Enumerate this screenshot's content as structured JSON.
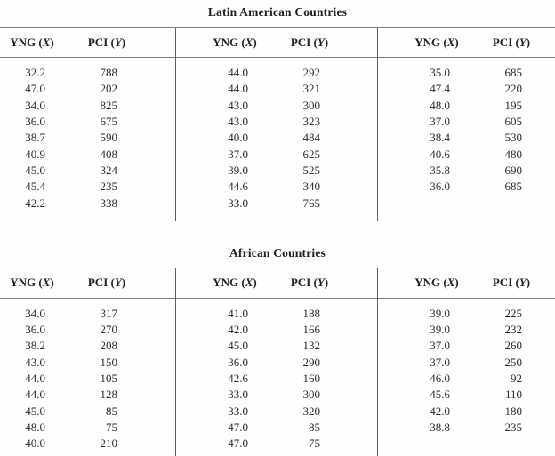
{
  "headers": {
    "yng_prefix": "YNG (",
    "yng_var": "X",
    "yng_suffix": ")",
    "pci_prefix": "PCI (",
    "pci_var": "Y",
    "pci_suffix": ")"
  },
  "tables": [
    {
      "title": "Latin American Countries",
      "groups": [
        {
          "rows": [
            [
              "32.2",
              "788"
            ],
            [
              "47.0",
              "202"
            ],
            [
              "34.0",
              "825"
            ],
            [
              "36.0",
              "675"
            ],
            [
              "38.7",
              "590"
            ],
            [
              "40.9",
              "408"
            ],
            [
              "45.0",
              "324"
            ],
            [
              "45.4",
              "235"
            ],
            [
              "42.2",
              "338"
            ]
          ]
        },
        {
          "rows": [
            [
              "44.0",
              "292"
            ],
            [
              "44.0",
              "321"
            ],
            [
              "43.0",
              "300"
            ],
            [
              "43.0",
              "323"
            ],
            [
              "40.0",
              "484"
            ],
            [
              "37.0",
              "625"
            ],
            [
              "39.0",
              "525"
            ],
            [
              "44.6",
              "340"
            ],
            [
              "33.0",
              "765"
            ]
          ]
        },
        {
          "rows": [
            [
              "35.0",
              "685"
            ],
            [
              "47.4",
              "220"
            ],
            [
              "48.0",
              "195"
            ],
            [
              "37.0",
              "605"
            ],
            [
              "38.4",
              "530"
            ],
            [
              "40.6",
              "480"
            ],
            [
              "35.8",
              "690"
            ],
            [
              "36.0",
              "685"
            ]
          ]
        }
      ]
    },
    {
      "title": "African Countries",
      "groups": [
        {
          "rows": [
            [
              "34.0",
              "317"
            ],
            [
              "36.0",
              "270"
            ],
            [
              "38.2",
              "208"
            ],
            [
              "43.0",
              "150"
            ],
            [
              "44.0",
              "105"
            ],
            [
              "44.0",
              "128"
            ],
            [
              "45.0",
              "85"
            ],
            [
              "48.0",
              "75"
            ],
            [
              "40.0",
              "210"
            ]
          ]
        },
        {
          "rows": [
            [
              "41.0",
              "188"
            ],
            [
              "42.0",
              "166"
            ],
            [
              "45.0",
              "132"
            ],
            [
              "36.0",
              "290"
            ],
            [
              "42.6",
              "160"
            ],
            [
              "33.0",
              "300"
            ],
            [
              "33.0",
              "320"
            ],
            [
              "47.0",
              "85"
            ],
            [
              "47.0",
              "75"
            ]
          ]
        },
        {
          "rows": [
            [
              "39.0",
              "225"
            ],
            [
              "39.0",
              "232"
            ],
            [
              "37.0",
              "260"
            ],
            [
              "37.0",
              "250"
            ],
            [
              "46.0",
              "92"
            ],
            [
              "45.6",
              "110"
            ],
            [
              "42.0",
              "180"
            ],
            [
              "38.8",
              "235"
            ]
          ]
        }
      ]
    }
  ]
}
